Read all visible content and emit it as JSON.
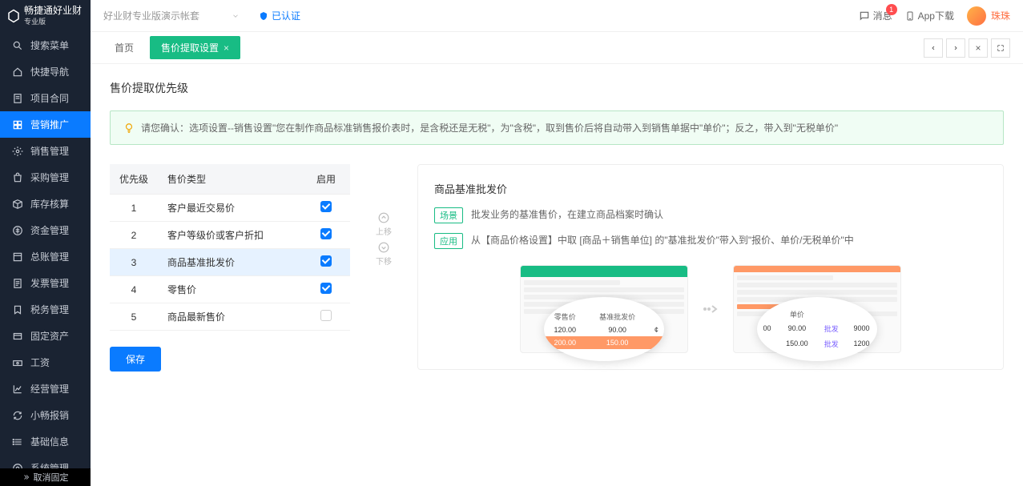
{
  "logo": {
    "line1": "畅捷通好业财",
    "line2": "专业版"
  },
  "sidebar": {
    "items": [
      {
        "label": "搜索菜单",
        "icon": "search"
      },
      {
        "label": "快捷导航",
        "icon": "home"
      },
      {
        "label": "项目合同",
        "icon": "doc"
      },
      {
        "label": "营销推广",
        "icon": "grid",
        "active": true
      },
      {
        "label": "销售管理",
        "icon": "gear"
      },
      {
        "label": "采购管理",
        "icon": "bag"
      },
      {
        "label": "库存核算",
        "icon": "box"
      },
      {
        "label": "资金管理",
        "icon": "money"
      },
      {
        "label": "总账管理",
        "icon": "book"
      },
      {
        "label": "发票管理",
        "icon": "receipt"
      },
      {
        "label": "税务管理",
        "icon": "tax"
      },
      {
        "label": "固定资产",
        "icon": "asset"
      },
      {
        "label": "工资",
        "icon": "salary"
      },
      {
        "label": "经营管理",
        "icon": "chart"
      },
      {
        "label": "小畅报销",
        "icon": "refresh"
      },
      {
        "label": "基础信息",
        "icon": "list"
      },
      {
        "label": "系统管理",
        "icon": "sys"
      }
    ],
    "pin": "取消固定"
  },
  "topbar": {
    "account": "好业财专业版演示帐套",
    "verified": "已认证",
    "msg": "消息",
    "msg_count": "1",
    "download": "App下载",
    "user": "珠珠"
  },
  "tabs": {
    "home": "首页",
    "active": "售价提取设置"
  },
  "page_title": "售价提取优先级",
  "alert": "请您确认：选项设置--销售设置\"您在制作商品标准销售报价表时，是含税还是无税\"，为\"含税\"，取到售价后将自动带入到销售单据中\"单价\"；反之，带入到\"无税单价\"",
  "table": {
    "headers": {
      "priority": "优先级",
      "type": "售价类型",
      "enable": "启用"
    },
    "rows": [
      {
        "n": "1",
        "label": "客户最近交易价",
        "on": true
      },
      {
        "n": "2",
        "label": "客户等级价或客户折扣",
        "on": true
      },
      {
        "n": "3",
        "label": "商品基准批发价",
        "on": true,
        "sel": true
      },
      {
        "n": "4",
        "label": "零售价",
        "on": true
      },
      {
        "n": "5",
        "label": "商品最新售价",
        "on": false
      }
    ]
  },
  "move": {
    "up": "上移",
    "down": "下移"
  },
  "save": "保存",
  "detail": {
    "title": "商品基准批发价",
    "scene_tag": "场景",
    "scene_text": "批发业务的基准售价，在建立商品档案时确认",
    "apply_tag": "应用",
    "apply_text": "从【商品价格设置】中取 [商品＋销售单位] 的\"基准批发价\"带入到\"报价、单价/无税单价\"中"
  },
  "example": {
    "left": {
      "h1": "零售价",
      "h2": "基准批发价",
      "r1c1": "120.00",
      "r1c2": "90.00",
      "r2c1": "200.00",
      "r2c2": "150.00"
    },
    "right": {
      "h1": "单价",
      "r1c1": "90.00",
      "r1c2": "批发",
      "r1c3": "9000",
      "r2c1": "150.00",
      "r2c2": "批发",
      "r2c3": "1200"
    }
  },
  "colors": {
    "primary": "#0a7bff",
    "green": "#18bc84",
    "sidebar": "#1a2332",
    "orange": "#ff9966"
  }
}
